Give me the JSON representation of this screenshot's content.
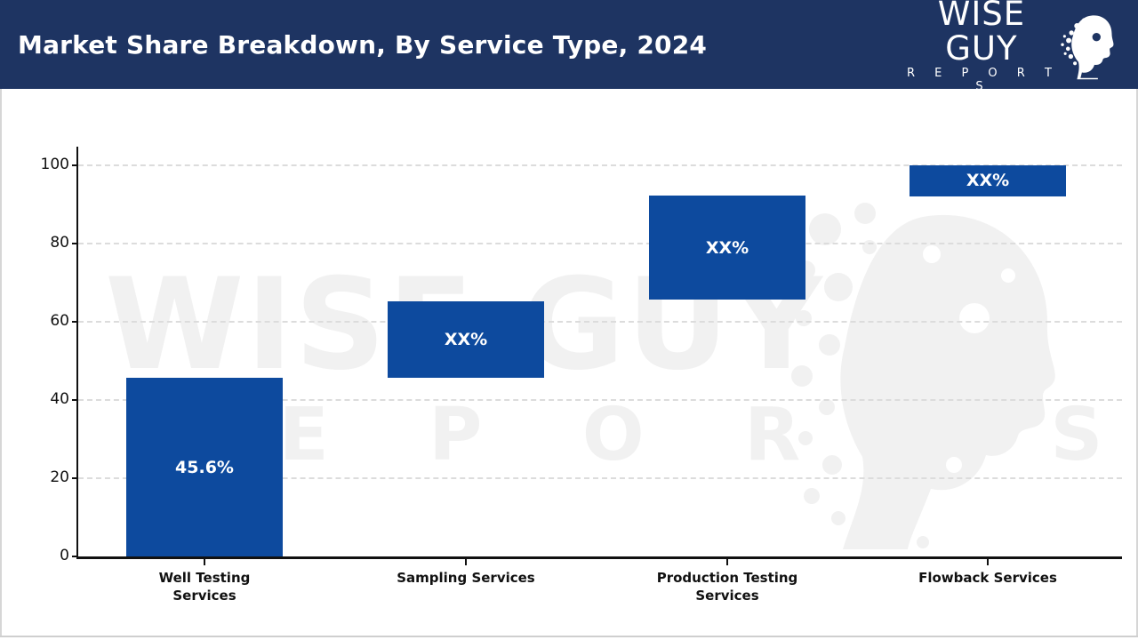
{
  "header": {
    "title": "Market Share Breakdown, By Service Type, 2024",
    "bg_color": "#1e3462",
    "logo": {
      "line1": "WISE GUY",
      "line2": "R E P O R T S"
    }
  },
  "watermark": {
    "line1": "WISE GUY",
    "line2": "R E P O R T S",
    "color": "#f1f1f1"
  },
  "chart_data": {
    "type": "bar",
    "subtype": "waterfall",
    "title": "Market Share Breakdown, By Service Type, 2024",
    "categories": [
      "Well Testing Services",
      "Sampling Services",
      "Production Testing Services",
      "Flowback Services"
    ],
    "segments": [
      {
        "category": "Well Testing Services",
        "start": 0,
        "end": 45.6,
        "label": "45.6%"
      },
      {
        "category": "Sampling Services",
        "start": 45.6,
        "end": 65.2,
        "label": "XX%"
      },
      {
        "category": "Production Testing Services",
        "start": 65.6,
        "end": 92.2,
        "label": "XX%"
      },
      {
        "category": "Flowback Services",
        "start": 92.1,
        "end": 100,
        "label": "XX%"
      }
    ],
    "y_ticks": [
      0,
      20,
      40,
      60,
      80,
      100
    ],
    "ylim": [
      0,
      104
    ],
    "xlabel": "",
    "ylabel": "",
    "grid": "horizontal-dashed",
    "legend": "none",
    "bar_color": "#0d4a9e",
    "bar_label_color": "#ffffff",
    "axis_color": "#111111"
  }
}
